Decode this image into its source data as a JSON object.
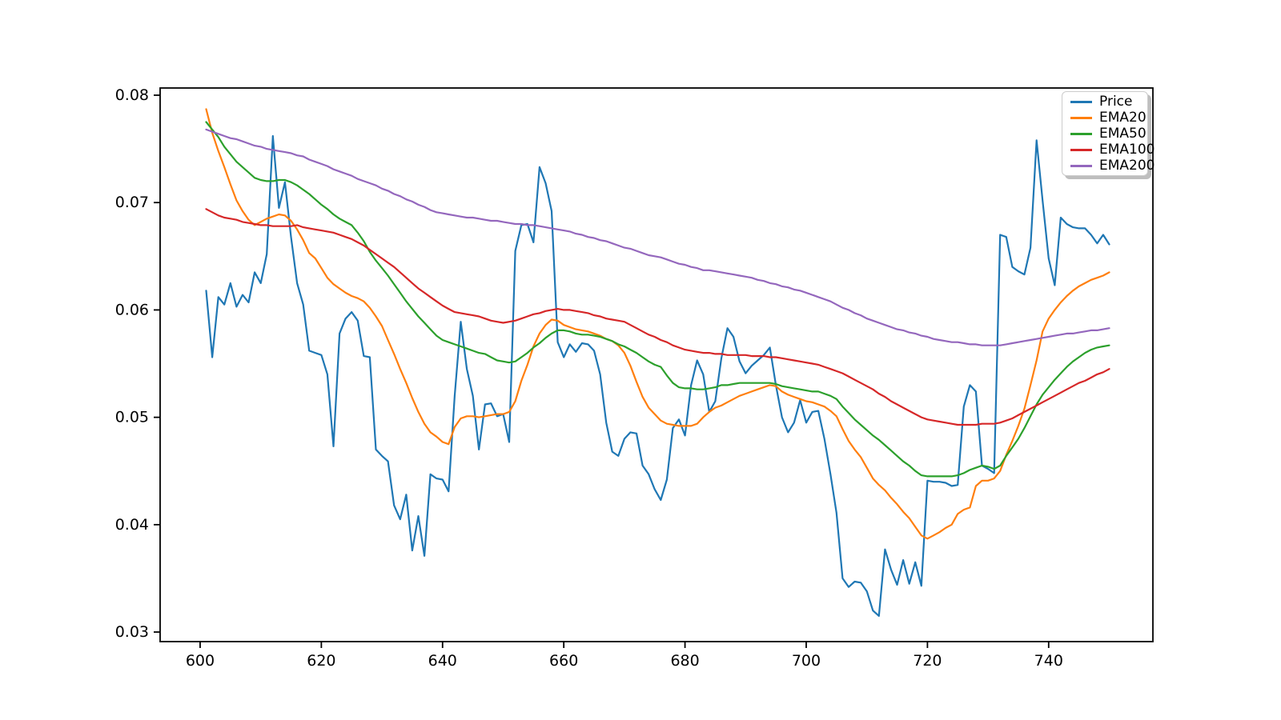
{
  "chart_data": {
    "type": "line",
    "title": "",
    "xlabel": "",
    "ylabel": "",
    "grid": false,
    "background": "#ffffff",
    "axis_color": "#000000",
    "legend": {
      "position": "upper right",
      "entries": [
        "Price",
        "EMA20",
        "EMA50",
        "EMA100",
        "EMA200"
      ]
    },
    "xlim": [
      593.4,
      757.2
    ],
    "ylim": [
      0.02911,
      0.08067
    ],
    "x_ticks": [
      600,
      620,
      640,
      660,
      680,
      700,
      720,
      740
    ],
    "y_ticks": [
      0.03,
      0.04,
      0.05,
      0.06,
      0.07,
      0.08
    ],
    "x": [
      601,
      602,
      603,
      604,
      605,
      606,
      607,
      608,
      609,
      610,
      611,
      612,
      613,
      614,
      615,
      616,
      617,
      618,
      619,
      620,
      621,
      622,
      623,
      624,
      625,
      626,
      627,
      628,
      629,
      630,
      631,
      632,
      633,
      634,
      635,
      636,
      637,
      638,
      639,
      640,
      641,
      642,
      643,
      644,
      645,
      646,
      647,
      648,
      649,
      650,
      651,
      652,
      653,
      654,
      655,
      656,
      657,
      658,
      659,
      660,
      661,
      662,
      663,
      664,
      665,
      666,
      667,
      668,
      669,
      670,
      671,
      672,
      673,
      674,
      675,
      676,
      677,
      678,
      679,
      680,
      681,
      682,
      683,
      684,
      685,
      686,
      687,
      688,
      689,
      690,
      691,
      692,
      693,
      694,
      695,
      696,
      697,
      698,
      699,
      700,
      701,
      702,
      703,
      704,
      705,
      706,
      707,
      708,
      709,
      710,
      711,
      712,
      713,
      714,
      715,
      716,
      717,
      718,
      719,
      720,
      721,
      722,
      723,
      724,
      725,
      726,
      727,
      728,
      729,
      730,
      731,
      732,
      733,
      734,
      735,
      736,
      737,
      738,
      739,
      740,
      741,
      742,
      743,
      744,
      745,
      746,
      747,
      748,
      749,
      750
    ],
    "series": [
      {
        "name": "Price",
        "color": "#1f77b4",
        "values": [
          0.0618,
          0.0556,
          0.0612,
          0.0605,
          0.0625,
          0.0603,
          0.0614,
          0.0607,
          0.0635,
          0.0625,
          0.0652,
          0.0762,
          0.0695,
          0.0719,
          0.0668,
          0.0625,
          0.0605,
          0.0562,
          0.056,
          0.0558,
          0.054,
          0.0473,
          0.0578,
          0.0592,
          0.0598,
          0.059,
          0.0557,
          0.0556,
          0.047,
          0.0464,
          0.0459,
          0.0418,
          0.0405,
          0.0428,
          0.0376,
          0.0408,
          0.0371,
          0.0447,
          0.0443,
          0.0442,
          0.0431,
          0.052,
          0.0589,
          0.0545,
          0.052,
          0.047,
          0.0512,
          0.0513,
          0.0501,
          0.0503,
          0.0477,
          0.0655,
          0.0679,
          0.068,
          0.0663,
          0.0733,
          0.0718,
          0.0692,
          0.057,
          0.0556,
          0.0568,
          0.0561,
          0.0569,
          0.0568,
          0.0562,
          0.054,
          0.0495,
          0.0468,
          0.0464,
          0.048,
          0.0486,
          0.0485,
          0.0455,
          0.0447,
          0.0433,
          0.0423,
          0.0442,
          0.049,
          0.0498,
          0.0483,
          0.053,
          0.0553,
          0.054,
          0.0505,
          0.0515,
          0.0555,
          0.0583,
          0.0575,
          0.0552,
          0.0541,
          0.0548,
          0.0553,
          0.0558,
          0.0565,
          0.053,
          0.05,
          0.0486,
          0.0495,
          0.0516,
          0.0495,
          0.0505,
          0.0506,
          0.048,
          0.0447,
          0.0411,
          0.035,
          0.0342,
          0.0347,
          0.0346,
          0.0338,
          0.032,
          0.0315,
          0.0377,
          0.0358,
          0.0344,
          0.0367,
          0.0345,
          0.0365,
          0.0343,
          0.0441,
          0.044,
          0.044,
          0.0439,
          0.0436,
          0.0437,
          0.051,
          0.053,
          0.0524,
          0.0455,
          0.0452,
          0.0448,
          0.067,
          0.0668,
          0.064,
          0.0636,
          0.0633,
          0.0658,
          0.0758,
          0.0702,
          0.0648,
          0.0623,
          0.0686,
          0.068,
          0.0677,
          0.0676,
          0.0676,
          0.067,
          0.0662,
          0.067,
          0.0661
        ]
      },
      {
        "name": "EMA20",
        "color": "#ff7f0e",
        "values": [
          0.0787,
          0.0765,
          0.0748,
          0.0733,
          0.0717,
          0.0702,
          0.0692,
          0.0684,
          0.0679,
          0.0682,
          0.0685,
          0.0687,
          0.0689,
          0.0688,
          0.0683,
          0.0675,
          0.0665,
          0.0653,
          0.0648,
          0.0639,
          0.063,
          0.0624,
          0.062,
          0.0616,
          0.0613,
          0.0611,
          0.0608,
          0.0602,
          0.0594,
          0.0585,
          0.0572,
          0.0559,
          0.0545,
          0.0532,
          0.0518,
          0.0505,
          0.0494,
          0.0486,
          0.0482,
          0.0477,
          0.0475,
          0.0491,
          0.0499,
          0.0501,
          0.0501,
          0.05,
          0.0501,
          0.0502,
          0.0503,
          0.0503,
          0.0505,
          0.0515,
          0.0534,
          0.0549,
          0.0566,
          0.0578,
          0.0586,
          0.0591,
          0.059,
          0.0586,
          0.0584,
          0.0582,
          0.0581,
          0.058,
          0.0578,
          0.0576,
          0.0573,
          0.0571,
          0.0567,
          0.056,
          0.0548,
          0.0533,
          0.0519,
          0.0509,
          0.0503,
          0.0497,
          0.0494,
          0.0493,
          0.0492,
          0.0492,
          0.0492,
          0.0494,
          0.05,
          0.0505,
          0.0509,
          0.0511,
          0.0514,
          0.0517,
          0.052,
          0.0522,
          0.0524,
          0.0526,
          0.0528,
          0.053,
          0.0529,
          0.0524,
          0.0521,
          0.0519,
          0.0517,
          0.0515,
          0.0514,
          0.0512,
          0.051,
          0.0506,
          0.0501,
          0.0489,
          0.0478,
          0.047,
          0.0463,
          0.0453,
          0.0443,
          0.0437,
          0.0432,
          0.0425,
          0.0419,
          0.0412,
          0.0406,
          0.0398,
          0.039,
          0.0387,
          0.039,
          0.0393,
          0.0397,
          0.04,
          0.041,
          0.0414,
          0.0416,
          0.0436,
          0.0441,
          0.0441,
          0.0443,
          0.045,
          0.0465,
          0.0478,
          0.0492,
          0.0508,
          0.053,
          0.0553,
          0.058,
          0.0592,
          0.06,
          0.0607,
          0.0613,
          0.0618,
          0.0622,
          0.0625,
          0.0628,
          0.063,
          0.0632,
          0.0635
        ]
      },
      {
        "name": "EMA50",
        "color": "#2ca02c",
        "values": [
          0.0775,
          0.0768,
          0.0761,
          0.0752,
          0.0745,
          0.0738,
          0.0733,
          0.0728,
          0.0723,
          0.0721,
          0.072,
          0.072,
          0.0721,
          0.0721,
          0.0719,
          0.0716,
          0.0712,
          0.0708,
          0.0703,
          0.0698,
          0.0694,
          0.0689,
          0.0685,
          0.0682,
          0.0679,
          0.0672,
          0.0664,
          0.0654,
          0.0646,
          0.0639,
          0.0632,
          0.0624,
          0.0616,
          0.0608,
          0.0601,
          0.0594,
          0.0588,
          0.0582,
          0.0576,
          0.0572,
          0.057,
          0.0568,
          0.0566,
          0.0564,
          0.0562,
          0.056,
          0.0559,
          0.0556,
          0.0553,
          0.0552,
          0.0551,
          0.0552,
          0.0556,
          0.056,
          0.0565,
          0.0569,
          0.0574,
          0.0578,
          0.0581,
          0.0581,
          0.058,
          0.0578,
          0.0577,
          0.0577,
          0.0576,
          0.0575,
          0.0573,
          0.0571,
          0.0568,
          0.0566,
          0.0563,
          0.056,
          0.0556,
          0.0552,
          0.0549,
          0.0547,
          0.0539,
          0.0532,
          0.0528,
          0.0527,
          0.0527,
          0.0526,
          0.0526,
          0.0527,
          0.0528,
          0.053,
          0.053,
          0.0531,
          0.0532,
          0.0532,
          0.0532,
          0.0532,
          0.0532,
          0.0532,
          0.0531,
          0.0529,
          0.0528,
          0.0527,
          0.0526,
          0.0525,
          0.0524,
          0.0524,
          0.0522,
          0.052,
          0.0517,
          0.051,
          0.0504,
          0.0498,
          0.0493,
          0.0488,
          0.0483,
          0.0479,
          0.0474,
          0.0469,
          0.0464,
          0.0459,
          0.0455,
          0.045,
          0.0446,
          0.0445,
          0.0445,
          0.0445,
          0.0445,
          0.0445,
          0.0446,
          0.0448,
          0.0451,
          0.0453,
          0.0455,
          0.0454,
          0.0452,
          0.0455,
          0.0464,
          0.0472,
          0.048,
          0.049,
          0.0501,
          0.0512,
          0.0521,
          0.0528,
          0.0535,
          0.0541,
          0.0547,
          0.0552,
          0.0556,
          0.056,
          0.0563,
          0.0565,
          0.0566,
          0.0567
        ]
      },
      {
        "name": "EMA100",
        "color": "#d62728",
        "values": [
          0.0694,
          0.0691,
          0.0688,
          0.0686,
          0.0685,
          0.0684,
          0.0682,
          0.0681,
          0.068,
          0.0679,
          0.0679,
          0.0678,
          0.0678,
          0.0678,
          0.0678,
          0.0679,
          0.0677,
          0.0676,
          0.0675,
          0.0674,
          0.0673,
          0.0672,
          0.067,
          0.0668,
          0.0666,
          0.0663,
          0.066,
          0.0656,
          0.0652,
          0.0648,
          0.0644,
          0.064,
          0.0635,
          0.063,
          0.0625,
          0.062,
          0.0616,
          0.0612,
          0.0608,
          0.0604,
          0.0601,
          0.0598,
          0.0597,
          0.0596,
          0.0595,
          0.0594,
          0.0592,
          0.059,
          0.0589,
          0.0588,
          0.0589,
          0.059,
          0.0592,
          0.0594,
          0.0596,
          0.0597,
          0.0599,
          0.06,
          0.0601,
          0.06,
          0.06,
          0.0599,
          0.0598,
          0.0597,
          0.0595,
          0.0594,
          0.0592,
          0.0591,
          0.059,
          0.0589,
          0.0586,
          0.0583,
          0.058,
          0.0577,
          0.0575,
          0.0572,
          0.057,
          0.0567,
          0.0565,
          0.0563,
          0.0562,
          0.0561,
          0.056,
          0.056,
          0.0559,
          0.0559,
          0.0558,
          0.0558,
          0.0558,
          0.0558,
          0.0557,
          0.0557,
          0.0557,
          0.0556,
          0.0556,
          0.0555,
          0.0554,
          0.0553,
          0.0552,
          0.0551,
          0.055,
          0.0549,
          0.0547,
          0.0545,
          0.0543,
          0.0541,
          0.0538,
          0.0535,
          0.0532,
          0.0529,
          0.0526,
          0.0522,
          0.0519,
          0.0515,
          0.0512,
          0.0509,
          0.0506,
          0.0503,
          0.05,
          0.0498,
          0.0497,
          0.0496,
          0.0495,
          0.0494,
          0.0493,
          0.0493,
          0.0493,
          0.0493,
          0.0494,
          0.0494,
          0.0494,
          0.0495,
          0.0497,
          0.0499,
          0.0502,
          0.0505,
          0.0508,
          0.0511,
          0.0514,
          0.0517,
          0.052,
          0.0523,
          0.0526,
          0.0529,
          0.0532,
          0.0534,
          0.0537,
          0.054,
          0.0542,
          0.0545
        ]
      },
      {
        "name": "EMA200",
        "color": "#9467bd",
        "values": [
          0.0768,
          0.0766,
          0.0764,
          0.0762,
          0.076,
          0.0759,
          0.0757,
          0.0755,
          0.0753,
          0.0752,
          0.075,
          0.0749,
          0.0748,
          0.0747,
          0.0746,
          0.0744,
          0.0743,
          0.074,
          0.0738,
          0.0736,
          0.0734,
          0.0731,
          0.0729,
          0.0727,
          0.0725,
          0.0722,
          0.072,
          0.0718,
          0.0716,
          0.0713,
          0.0711,
          0.0708,
          0.0706,
          0.0703,
          0.0701,
          0.0698,
          0.0696,
          0.0693,
          0.0691,
          0.069,
          0.0689,
          0.0688,
          0.0687,
          0.0686,
          0.0686,
          0.0685,
          0.0684,
          0.0683,
          0.0683,
          0.0682,
          0.0681,
          0.068,
          0.068,
          0.0679,
          0.0679,
          0.0678,
          0.0677,
          0.0676,
          0.0675,
          0.0674,
          0.0673,
          0.0671,
          0.067,
          0.0668,
          0.0667,
          0.0665,
          0.0664,
          0.0662,
          0.066,
          0.0658,
          0.0657,
          0.0655,
          0.0653,
          0.0651,
          0.065,
          0.0649,
          0.0647,
          0.0645,
          0.0643,
          0.0642,
          0.064,
          0.0639,
          0.0637,
          0.0637,
          0.0636,
          0.0635,
          0.0634,
          0.0633,
          0.0632,
          0.0631,
          0.063,
          0.0628,
          0.0627,
          0.0625,
          0.0624,
          0.0622,
          0.0621,
          0.0619,
          0.0618,
          0.0616,
          0.0614,
          0.0612,
          0.061,
          0.0608,
          0.0605,
          0.0602,
          0.06,
          0.0597,
          0.0595,
          0.0592,
          0.059,
          0.0588,
          0.0586,
          0.0584,
          0.0582,
          0.0581,
          0.0579,
          0.0578,
          0.0576,
          0.0575,
          0.0573,
          0.0572,
          0.0571,
          0.057,
          0.057,
          0.0569,
          0.0568,
          0.0568,
          0.0567,
          0.0567,
          0.0567,
          0.0567,
          0.0568,
          0.0569,
          0.057,
          0.0571,
          0.0572,
          0.0573,
          0.0574,
          0.0575,
          0.0576,
          0.0577,
          0.0578,
          0.0578,
          0.0579,
          0.058,
          0.0581,
          0.0581,
          0.0582,
          0.0583
        ]
      }
    ]
  }
}
